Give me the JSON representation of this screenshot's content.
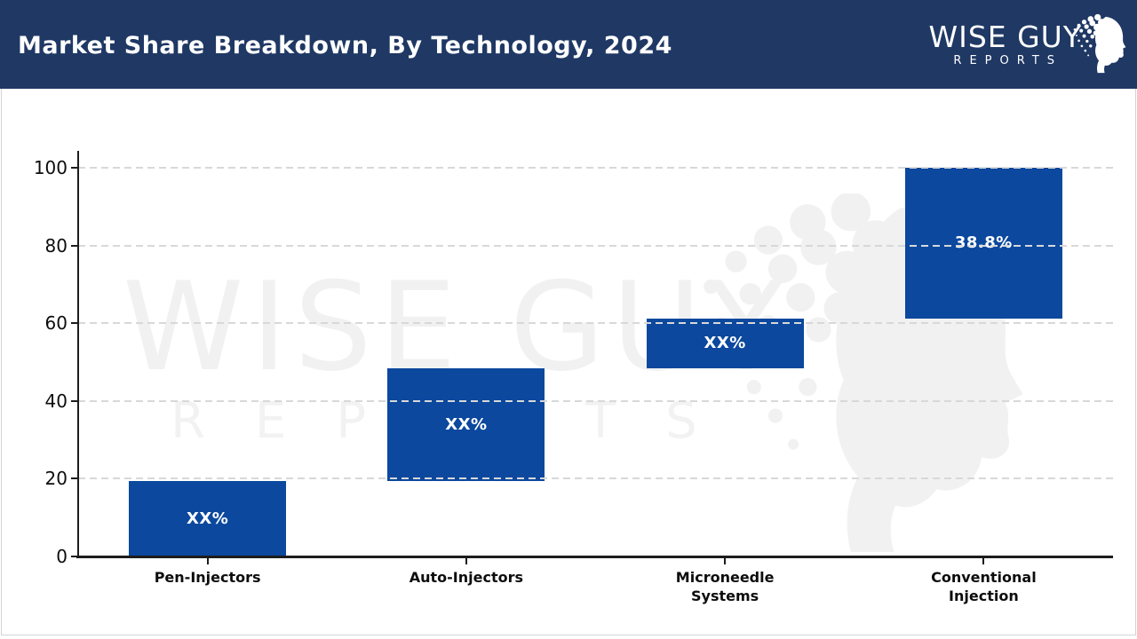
{
  "header": {
    "title": "Market Share Breakdown, By Technology, 2024",
    "bg_color": "#1f3864",
    "logo": {
      "wordmark": "WISE GUY",
      "subtext": "REPORTS"
    }
  },
  "watermark": {
    "wordmark": "WISE GUY",
    "subtext": "REPORTS"
  },
  "chart_data": {
    "type": "bar",
    "variant": "waterfall",
    "title": "Market Share Breakdown, By Technology, 2024",
    "categories": [
      "Pen-Injectors",
      "Auto-Injectors",
      "Microneedle Systems",
      "Conventional Injection"
    ],
    "segments": [
      {
        "category": "Pen-Injectors",
        "start": 0,
        "end": 19.5,
        "value": 19.5,
        "value_label": "XX%"
      },
      {
        "category": "Auto-Injectors",
        "start": 19.5,
        "end": 48.5,
        "value": 29.0,
        "value_label": "XX%"
      },
      {
        "category": "Microneedle Systems",
        "start": 48.5,
        "end": 61.2,
        "value": 12.7,
        "value_label": "XX%"
      },
      {
        "category": "Conventional Injection",
        "start": 61.2,
        "end": 100,
        "value": 38.8,
        "value_label": "38.8%"
      }
    ],
    "ylim": [
      0,
      100
    ],
    "yticks": [
      0,
      20,
      40,
      60,
      80,
      100
    ],
    "xlabel": "",
    "ylabel": "",
    "grid": "horizontal-dashed",
    "legend": "none",
    "bar_color": "#0b489e",
    "bar_label_color": "#ffffff",
    "axis_color": "#1c1c1c"
  }
}
